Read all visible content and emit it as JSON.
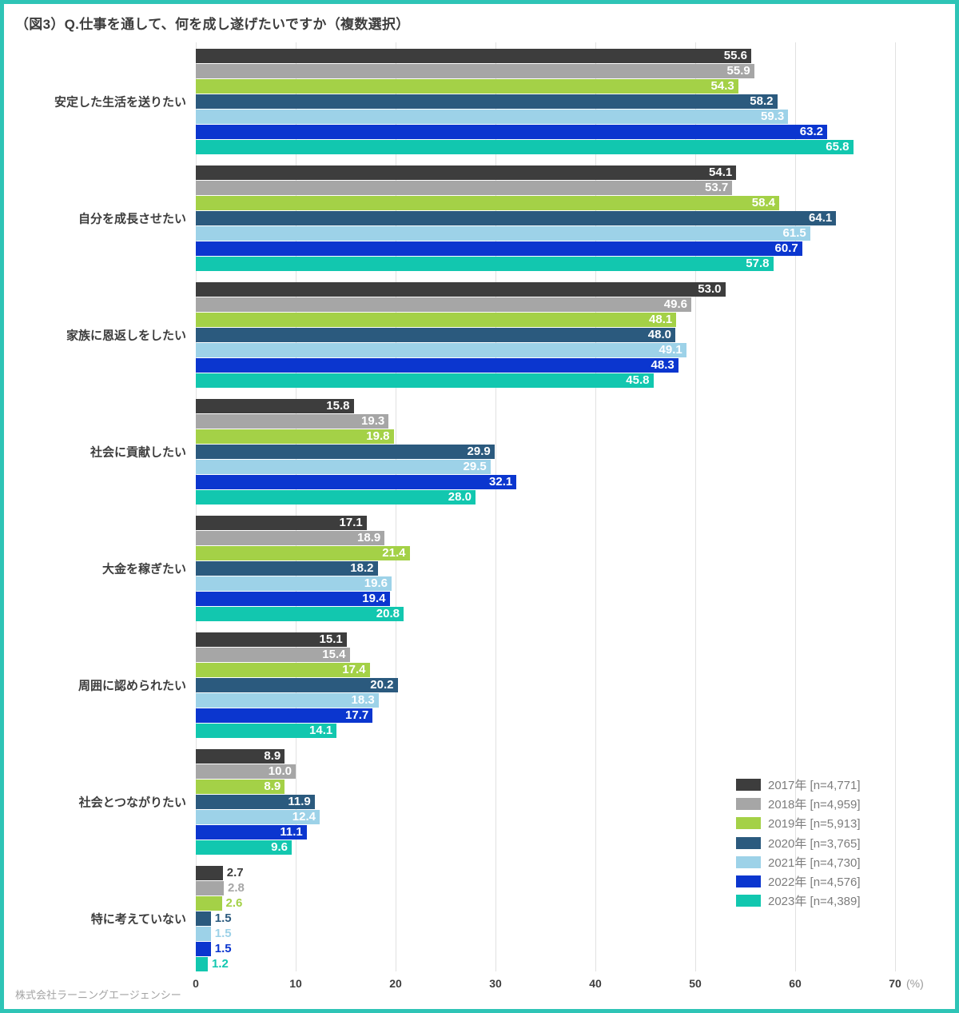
{
  "title": "（図3）Q.仕事を通して、何を成し遂げたいですか（複数選択）",
  "footer": "株式会社ラーニングエージェンシー",
  "accent_border_color": "#2ec4b6",
  "chart_data": {
    "type": "bar",
    "orientation": "horizontal",
    "title": "（図3）Q.仕事を通して、何を成し遂げたいですか（複数選択）",
    "xlabel": "",
    "ylabel": "",
    "xlim": [
      0,
      70
    ],
    "x_ticks": [
      0,
      10,
      20,
      30,
      40,
      50,
      60,
      70
    ],
    "x_axis_unit_label": "(%)",
    "grid": true,
    "legend_position": "right-bottom",
    "value_label_decimals": 1,
    "categories": [
      "安定した生活を送りたい",
      "自分を成長させたい",
      "家族に恩返しをしたい",
      "社会に貢献したい",
      "大金を稼ぎたい",
      "周囲に認められたい",
      "社会とつながりたい",
      "特に考えていない"
    ],
    "series": [
      {
        "name": "2017年 [n=4,771]",
        "color": "#3d3d3d",
        "values": [
          55.6,
          54.1,
          53.0,
          15.8,
          17.1,
          15.1,
          8.9,
          2.7
        ]
      },
      {
        "name": "2018年 [n=4,959]",
        "color": "#a6a6a6",
        "values": [
          55.9,
          53.7,
          49.6,
          19.3,
          18.9,
          15.4,
          10.0,
          2.8
        ]
      },
      {
        "name": "2019年 [n=5,913]",
        "color": "#a4d147",
        "values": [
          54.3,
          58.4,
          48.1,
          19.8,
          21.4,
          17.4,
          8.9,
          2.6
        ]
      },
      {
        "name": "2020年 [n=3,765]",
        "color": "#2b5a7e",
        "values": [
          58.2,
          64.1,
          48.0,
          29.9,
          18.2,
          20.2,
          11.9,
          1.5
        ]
      },
      {
        "name": "2021年 [n=4,730]",
        "color": "#9dd2e8",
        "values": [
          59.3,
          61.5,
          49.1,
          29.5,
          19.6,
          18.3,
          12.4,
          1.5
        ]
      },
      {
        "name": "2022年 [n=4,576]",
        "color": "#0b36cf",
        "values": [
          63.2,
          60.7,
          48.3,
          32.1,
          19.4,
          17.7,
          11.1,
          1.5
        ]
      },
      {
        "name": "2023年 [n=4,389]",
        "color": "#12c7af",
        "values": [
          65.8,
          57.8,
          45.8,
          28.0,
          20.8,
          14.1,
          9.6,
          1.2
        ]
      }
    ]
  }
}
